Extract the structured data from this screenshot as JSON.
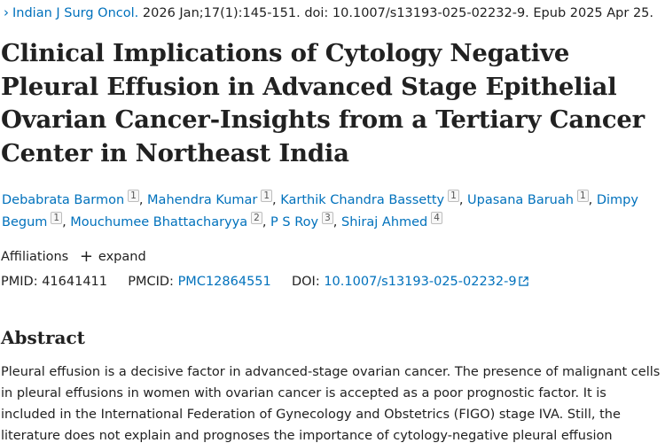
{
  "citation": {
    "journal": "Indian J Surg Oncol.",
    "details": " 2026 Jan;17(1):145-151. doi: 10.1007/s13193-025-02232-9. Epub 2025 Apr 25."
  },
  "title": "Clinical Implications of Cytology Negative Pleural Effusion in Advanced Stage Epithelial Ovarian Cancer-Insights from a Tertiary Cancer Center in Northeast India",
  "authors": [
    {
      "name": "Debabrata Barmon",
      "aff": "1"
    },
    {
      "name": "Mahendra Kumar",
      "aff": "1"
    },
    {
      "name": "Karthik Chandra Bassetty",
      "aff": "1"
    },
    {
      "name": "Upasana Baruah",
      "aff": "1"
    },
    {
      "name": "Dimpy Begum",
      "aff": "1"
    },
    {
      "name": "Mouchumee Bhattacharyya",
      "aff": "2"
    },
    {
      "name": "P S Roy",
      "aff": "3"
    },
    {
      "name": "Shiraj Ahmed",
      "aff": "4"
    }
  ],
  "affiliations": {
    "label": "Affiliations",
    "expand_label": "expand"
  },
  "identifiers": {
    "pmid_label": "PMID:",
    "pmid": "41641411",
    "pmcid_label": "PMCID:",
    "pmcid": "PMC12864551",
    "doi_label": "DOI:",
    "doi": "10.1007/s13193-025-02232-9"
  },
  "abstract": {
    "heading": "Abstract",
    "text": "Pleural effusion is a decisive factor in advanced-stage ovarian cancer. The presence of malignant cells in pleural effusions in women with ovarian cancer is accepted as a poor prognostic factor. It is included in the International Federation of Gynecology and Obstetrics (FIGO) stage IVA. Still, the literature does not explain and prognoses the importance of cytology-negative pleural effusion"
  },
  "colors": {
    "link": "#0071bc",
    "text": "#212121"
  }
}
